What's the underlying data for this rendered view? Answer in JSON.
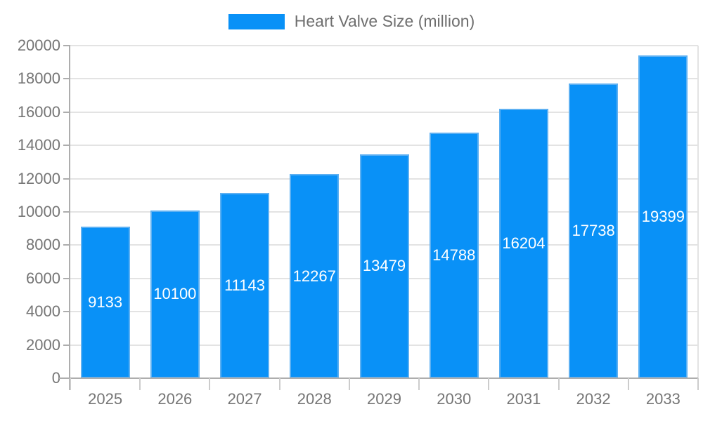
{
  "legend": {
    "label": "Heart Valve Size (million)"
  },
  "colors": {
    "bar_fill": "#0991f7",
    "bar_border": "#5db0f2",
    "grid_line": "#e3e3e3",
    "axis_line": "#adadad",
    "boundary_tick": "#cccccc",
    "axis_text": "#757575",
    "value_text": "#ffffff"
  },
  "chart_data": {
    "type": "bar",
    "title": "Heart Valve Size (million)",
    "categories": [
      "2025",
      "2026",
      "2027",
      "2028",
      "2029",
      "2030",
      "2031",
      "2032",
      "2033"
    ],
    "values": [
      9133,
      10100,
      11143,
      12267,
      13479,
      14788,
      16204,
      17738,
      19399
    ],
    "xlabel": "",
    "ylabel": "",
    "ylim": [
      0,
      20000
    ],
    "yticks": [
      0,
      2000,
      4000,
      6000,
      8000,
      10000,
      12000,
      14000,
      16000,
      18000,
      20000
    ],
    "grid": true,
    "legend_position": "top-center",
    "value_labels": "inside-center"
  }
}
